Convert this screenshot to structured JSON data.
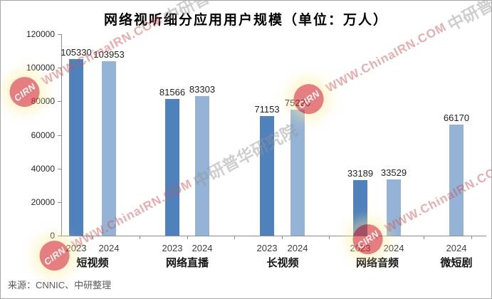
{
  "title": "网络视听细分应用用户规模（单位：万人）",
  "source": "来源：CNNIC、中研整理",
  "watermark": {
    "logo_text": "CIRN",
    "url_text": "WWW.ChinaIRN.COM",
    "org_text": "中研普华研究院"
  },
  "colors": {
    "bar_2023": "#4F81BD",
    "bar_2024": "#95B3D7",
    "axis": "#8c8c8c",
    "title_text": "#000000",
    "source_text": "#595959",
    "watermark_red": "#CF5254",
    "watermark_gray": "#949494"
  },
  "chart_data": {
    "type": "bar",
    "title": "网络视听细分应用用户规模（单位：万人）",
    "unit": "万人",
    "categories": [
      "短视频",
      "网络直播",
      "长视频",
      "网络音频",
      "微短剧"
    ],
    "series": [
      {
        "name": "2023",
        "values": [
          105330,
          81566,
          71153,
          33189,
          null
        ]
      },
      {
        "name": "2024",
        "values": [
          103953,
          83303,
          75220,
          33529,
          66170
        ]
      }
    ],
    "xlabel": "",
    "ylabel": "",
    "ylim": [
      0,
      120000
    ],
    "ytick_interval": 20000,
    "yticks": [
      0,
      20000,
      40000,
      60000,
      80000,
      100000,
      120000
    ],
    "grid": false,
    "legend_position": "none",
    "data_labels": true
  }
}
